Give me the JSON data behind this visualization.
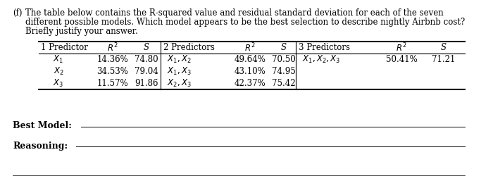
{
  "question_label": "(f)",
  "question_text": "The table below contains the R-squared value and residual standard deviation for each of the seven\ndifferent possible models. Which model appears to be the best selection to describe nightly Airbnb cost?\nBriefly justify your answer.",
  "col1_header": "1 Predictor",
  "col2_header": "2 Predictors",
  "col3_header": "3 Predictors",
  "r2_header": "$R^2$",
  "s_header": "S",
  "col1_rows": [
    [
      "$X_1$",
      "14.36%",
      "74.80"
    ],
    [
      "$X_2$",
      "34.53%",
      "79.04"
    ],
    [
      "$X_3$",
      "11.57%",
      "91.86"
    ]
  ],
  "col2_rows": [
    [
      "$X_1, X_2$",
      "49.64%",
      "70.50"
    ],
    [
      "$X_1, X_3$",
      "43.10%",
      "74.95"
    ],
    [
      "$X_2, X_3$",
      "42.37%",
      "75.42"
    ]
  ],
  "col3_rows": [
    [
      "$X_1, X_2, X_3$",
      "50.41%",
      "71.21"
    ]
  ],
  "best_model_label": "Best Model:",
  "reasoning_label": "Reasoning:",
  "bg_color": "#ffffff",
  "font_size": 8.5
}
